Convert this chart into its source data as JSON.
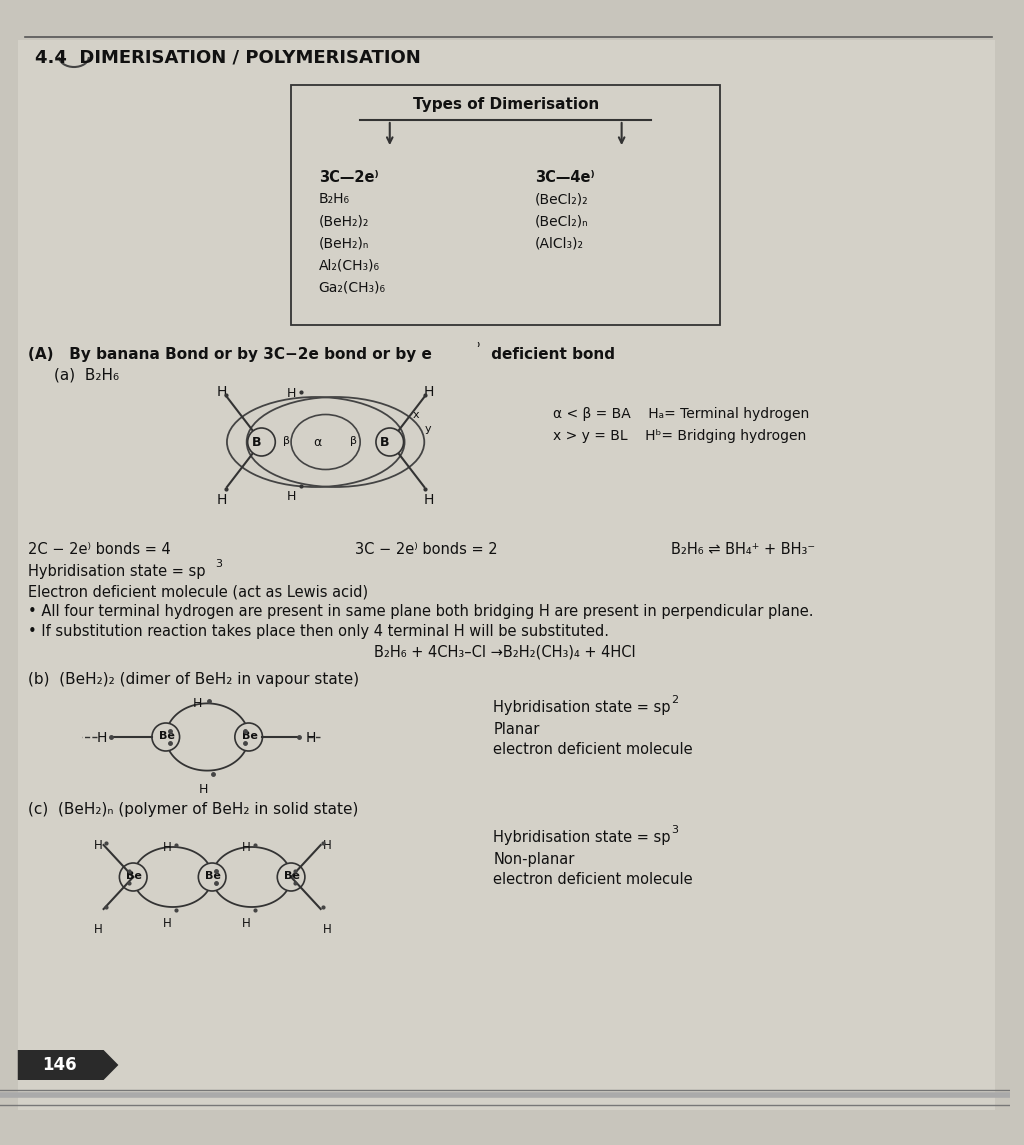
{
  "bg_color": "#c8c5bc",
  "paper_color": "#d4d1c8",
  "title": "4.4  DIMERISATION / POLYMERISATION",
  "box_title": "Types of Dimerisation",
  "left_col_header": "3C—2e⁾",
  "right_col_header": "3C—4e⁾",
  "left_col_items": [
    "B₂H₆",
    "(BeH₂)₂",
    "(BeH₂)ₙ",
    "Al₂(CH₃)₆",
    "Ga₂(CH₃)₆"
  ],
  "right_col_items": [
    "(BeCl₂)₂",
    "(BeCl₂)ₙ",
    "(AlCl₃)₂"
  ],
  "section_A_header_1": "(A)   By banana Bond or by 3C−2e bond or by e",
  "section_A_header_2": " deficient bond",
  "section_a_label": "(a)  B₂H₆",
  "annotation1": "α < β = BA    Hₐ= Terminal hydrogen",
  "annotation2": "x > y = BL    Hᵇ= Bridging hydrogen",
  "bonds_text1": "2C − 2e⁾ bonds = 4",
  "bonds_text2": "3C − 2e⁾ bonds = 2",
  "bonds_eq": "B₂H₆ ⇌ BH₄⁺ + BH₃⁻",
  "hybridisation1": "Hybridisation state = sp",
  "hybridisation1_sup": "3",
  "electron_def": "Electron deficient molecule (act as Lewis acid)",
  "bullet1": "• All four terminal hydrogen are present in same plane both bridging H are present in perpendicular plane.",
  "bullet2": "• If substitution reaction takes place then only 4 terminal H will be substituted.",
  "equation": "B₂H₆ + 4CH₃–Cl →B₂H₂(CH₃)₄ + 4HCl",
  "section_b_label": "(b)  (BeH₂)₂ (dimer of BeH₂ in vapour state)",
  "hybridisation_b": "Hybridisation state = sp",
  "hybridisation_b_sup": "2",
  "planar": "Planar",
  "electron_def_b": "electron deficient molecule",
  "section_c_label": "(c)  (BeH₂)ₙ (polymer of BeH₂ in solid state)",
  "hybridisation_c": "Hybridisation state = sp",
  "hybridisation_c_sup": "3",
  "non_planar": "Non-planar",
  "electron_def_c": "electron deficient molecule",
  "page_number": "146"
}
